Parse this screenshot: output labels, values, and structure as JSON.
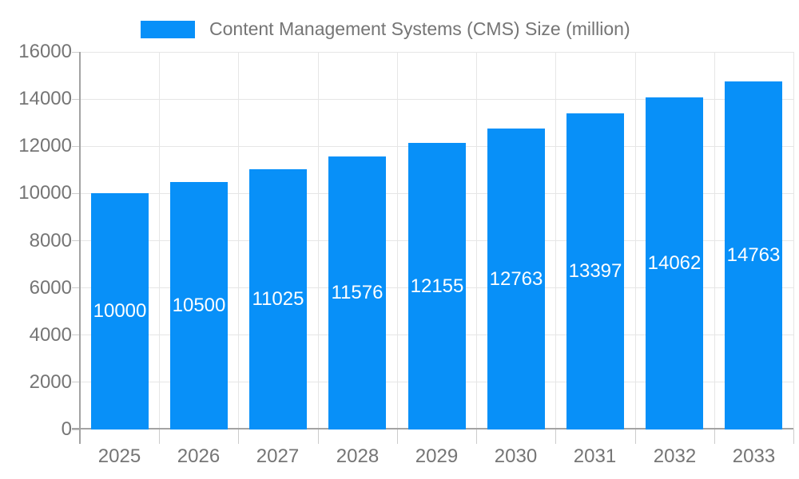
{
  "legend": {
    "label": "Content Management Systems (CMS) Size (million)"
  },
  "colors": {
    "bar": "#0890F8",
    "label": "#757575",
    "grid": "#e6e6e6",
    "axis": "#a3a3a3",
    "tick": "#cccccc",
    "bar_label": "#ffffff",
    "background": "#ffffff"
  },
  "chart_data": {
    "type": "bar",
    "title": "Content Management Systems (CMS) Size (million)",
    "categories": [
      "2025",
      "2026",
      "2027",
      "2028",
      "2029",
      "2030",
      "2031",
      "2032",
      "2033"
    ],
    "values": [
      10000,
      10500,
      11025,
      11576,
      12155,
      12763,
      13397,
      14062,
      14763
    ],
    "xlabel": "",
    "ylabel": "",
    "ylim": [
      0,
      16000
    ],
    "ytick_step": 2000,
    "ytick_labels": [
      "0",
      "2000",
      "4000",
      "6000",
      "8000",
      "10000",
      "12000",
      "14000",
      "16000"
    ],
    "grid": "both",
    "legend_position": "top",
    "value_labels": "inside-center"
  }
}
